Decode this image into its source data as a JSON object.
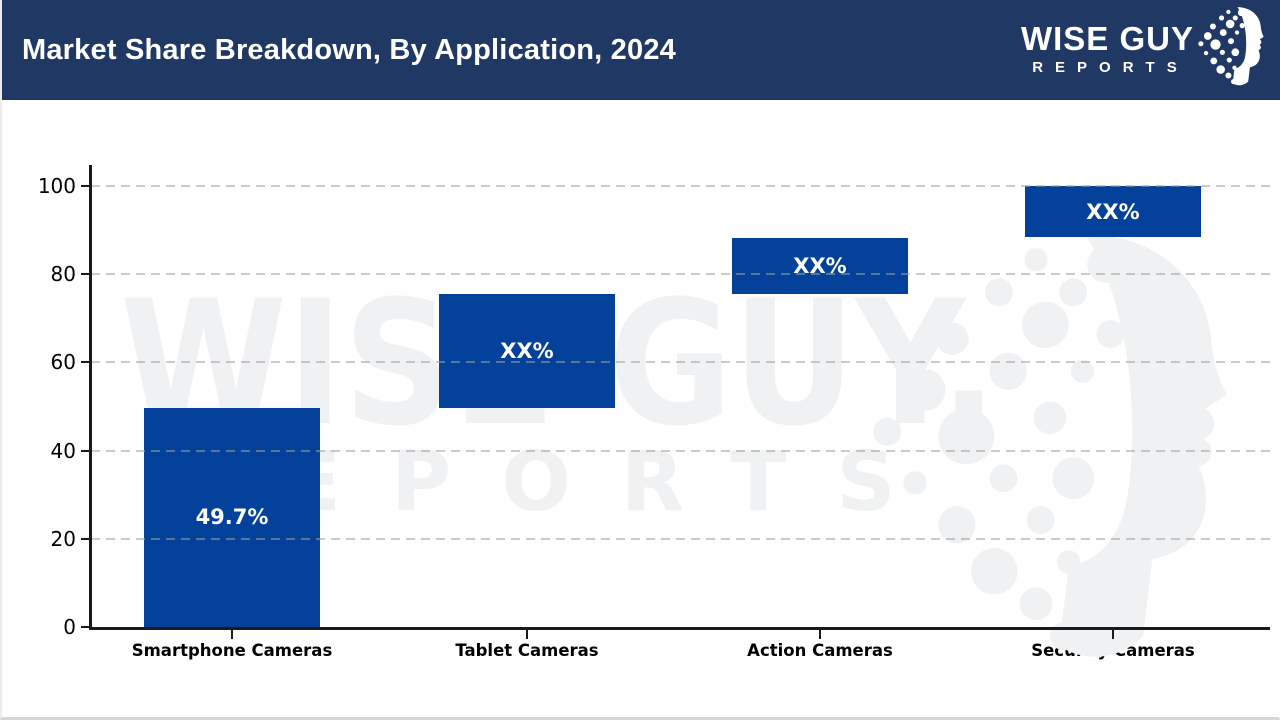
{
  "header": {
    "title": "Market Share Breakdown, By Application, 2024",
    "bg_color": "#1f3864",
    "logo": {
      "line1": "WISE GUY",
      "line2": "REPORTS"
    }
  },
  "watermark": {
    "line1": "WISE GUY.",
    "line2": "REPORTS"
  },
  "chart_data": {
    "type": "bar",
    "subtype": "waterfall",
    "title": "Market Share Breakdown, By Application, 2024",
    "categories": [
      "Smartphone Cameras",
      "Tablet Cameras",
      "Action Cameras",
      "Security Cameras"
    ],
    "series": [
      {
        "name": "Market Share %",
        "segments": [
          {
            "category": "Smartphone Cameras",
            "from": 0,
            "to": 49.7,
            "label": "49.7%"
          },
          {
            "category": "Tablet Cameras",
            "from": 49.7,
            "to": 75.5,
            "label": "XX%"
          },
          {
            "category": "Action Cameras",
            "from": 75.5,
            "to": 88.2,
            "label": "XX%"
          },
          {
            "category": "Security Cameras",
            "from": 88.4,
            "to": 100,
            "label": "XX%"
          }
        ]
      }
    ],
    "xlabel": "",
    "ylabel": "",
    "ylim": [
      0,
      105
    ],
    "yticks": [
      0,
      20,
      40,
      60,
      80,
      100
    ],
    "grid": true,
    "legend": false,
    "colors": {
      "bar": "#04419b",
      "bar_label": "#ffffff",
      "grid_line": "#c9c9c9",
      "axis": "#1a1a1a",
      "header_bg": "#1f3864",
      "watermark": "#eff1f3"
    }
  }
}
